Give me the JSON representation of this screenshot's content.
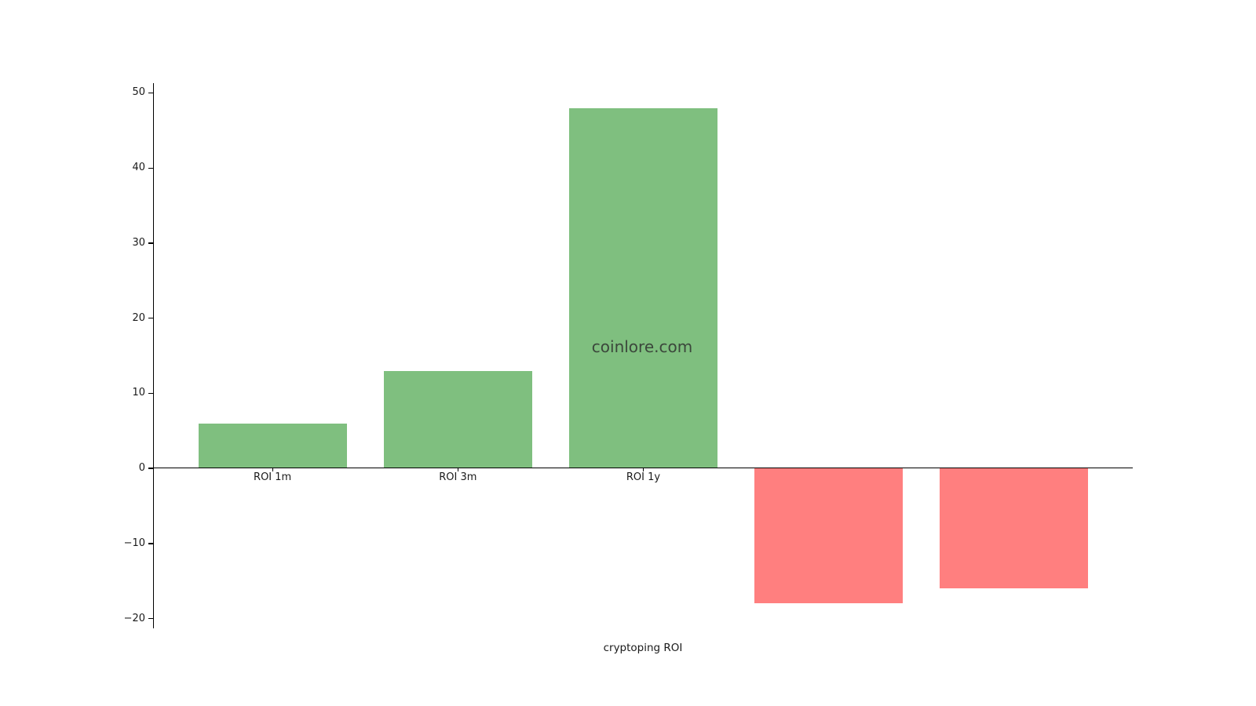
{
  "chart_data": {
    "type": "bar",
    "categories": [
      "ROI 1m",
      "ROI 3m",
      "ROI 1y",
      "",
      ""
    ],
    "values": [
      6,
      13,
      48,
      -18,
      -16
    ],
    "positive_color": "#7fbf7f",
    "negative_color": "#ff7f7f",
    "title": "",
    "xlabel": "cryptoping ROI",
    "ylabel": "",
    "ylim": [
      -21.3,
      51.3
    ],
    "yticks": [
      50,
      40,
      30,
      20,
      10,
      0,
      -10,
      -20
    ],
    "ytick_labels": [
      "50",
      "40",
      "30",
      "20",
      "10",
      "0",
      "−10",
      "−20"
    ],
    "grid": false,
    "legend": "none",
    "axis_color": "#000000",
    "tick_label_color": "#1a1a1a"
  },
  "watermark": {
    "text": "coinlore.com",
    "color": "#2d2d2d"
  }
}
